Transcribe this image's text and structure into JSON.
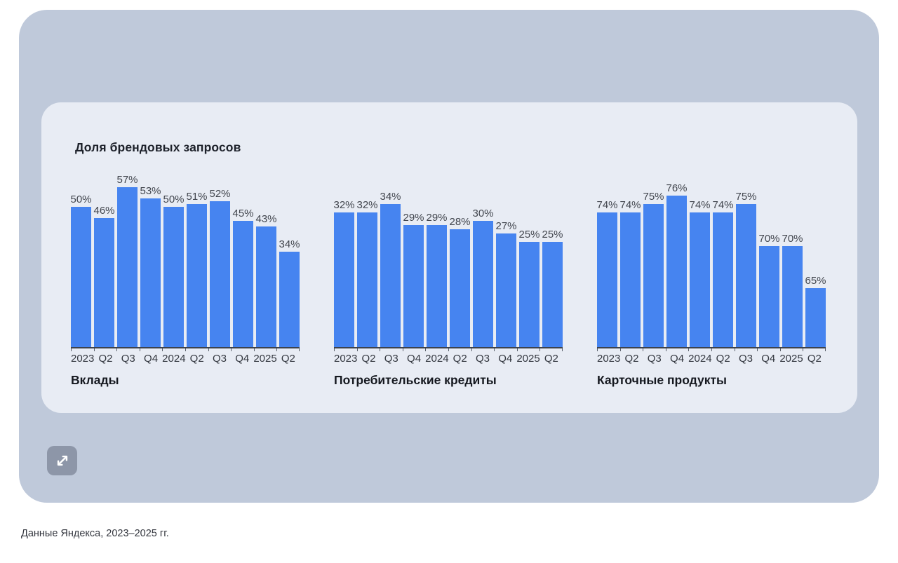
{
  "panel": {
    "title": "Доля брендовых запросов"
  },
  "page": {
    "footer": "Данные Яндекса, 2023–2025 гг."
  },
  "controls": {
    "expand_button_icon": "expand-arrows-icon"
  },
  "colors": {
    "outer_background": "#bfc9da",
    "card_background": "#e8ecf4",
    "bar": "#4684f0",
    "axis": "#3c424d",
    "value_label": "#42464e",
    "expand_button": "#8d96a8"
  },
  "chart_data": [
    {
      "type": "bar",
      "title": "Вклады",
      "categories": [
        "2023",
        "Q2",
        "Q3",
        "Q4",
        "2024",
        "Q2",
        "Q3",
        "Q4",
        "2025",
        "Q2"
      ],
      "values": [
        50,
        46,
        57,
        53,
        50,
        51,
        52,
        45,
        43,
        34
      ],
      "value_suffix": "%",
      "ylim": [
        0,
        60
      ],
      "bar_color": "#4684f0",
      "grid": false,
      "legend": false
    },
    {
      "type": "bar",
      "title": "Потребительские кредиты",
      "categories": [
        "2023",
        "Q2",
        "Q3",
        "Q4",
        "2024",
        "Q2",
        "Q3",
        "Q4",
        "2025",
        "Q2"
      ],
      "values": [
        32,
        32,
        34,
        29,
        29,
        28,
        30,
        27,
        25,
        25
      ],
      "value_suffix": "%",
      "ylim": [
        0,
        40
      ],
      "bar_color": "#4684f0",
      "grid": false,
      "legend": false
    },
    {
      "type": "bar",
      "title": "Карточные продукты",
      "categories": [
        "2023",
        "Q2",
        "Q3",
        "Q4",
        "2024",
        "Q2",
        "Q3",
        "Q4",
        "2025",
        "Q2"
      ],
      "values": [
        74,
        74,
        75,
        76,
        74,
        74,
        75,
        70,
        70,
        65
      ],
      "value_suffix": "%",
      "ylim": [
        58,
        78
      ],
      "bar_color": "#4684f0",
      "grid": false,
      "legend": false
    }
  ]
}
